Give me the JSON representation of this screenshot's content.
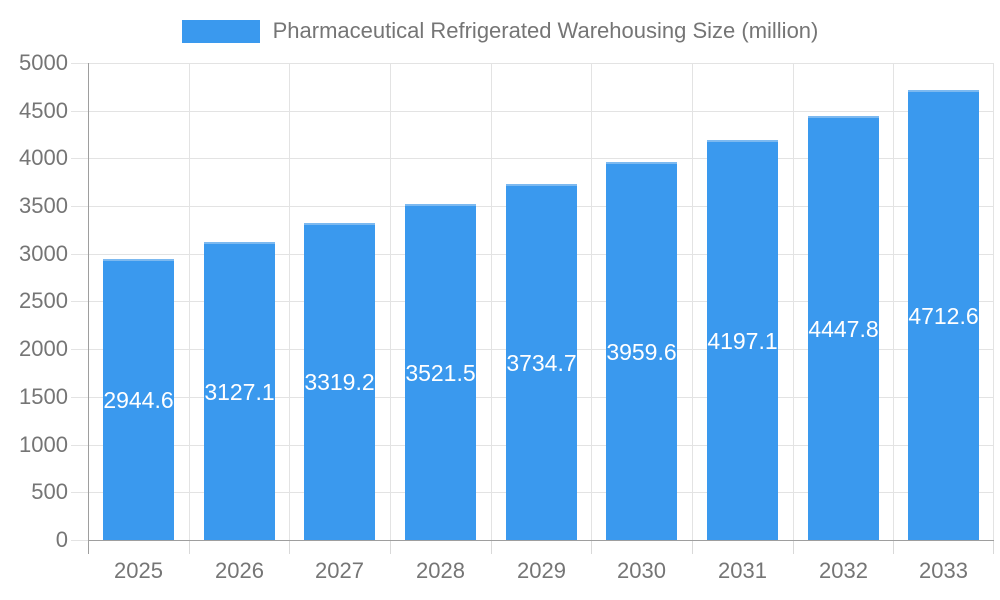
{
  "chart_data": {
    "type": "bar",
    "title": "Pharmaceutical Refrigerated Warehousing Size (million)",
    "legend_entries": [
      "Pharmaceutical Refrigerated Warehousing Size (million)"
    ],
    "legend_position": "top-center",
    "categories": [
      "2025",
      "2026",
      "2027",
      "2028",
      "2029",
      "2030",
      "2031",
      "2032",
      "2033"
    ],
    "values": [
      2944.6,
      3127.1,
      3319.2,
      3521.5,
      3734.7,
      3959.6,
      4197.1,
      4447.8,
      4712.6
    ],
    "xlabel": "",
    "ylabel": "",
    "ylim": [
      0,
      5000
    ],
    "ytick_step": 500,
    "grid": "horizontal-and-vertical",
    "value_label_position": "inside-center"
  },
  "colors": {
    "bar": "#3A99EE",
    "bar_top_edge": "#7CB9F0",
    "axis_line": "#9E9E9E",
    "gridline": "#E3E3E3",
    "tick": "#D9D9D9",
    "axis_text": "#757575",
    "value_text": "#FFFFFF",
    "background": "#FFFFFF"
  }
}
